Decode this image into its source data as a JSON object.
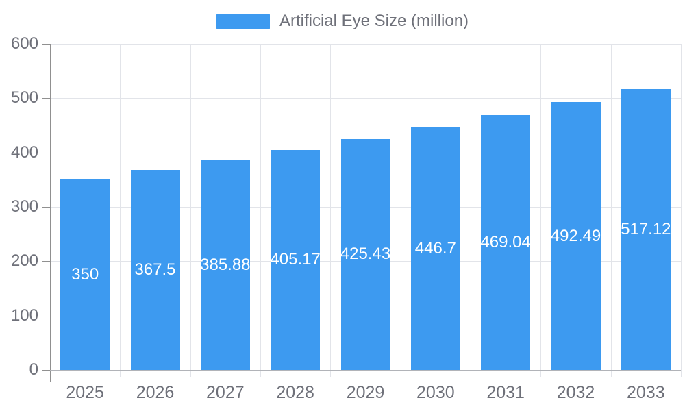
{
  "legend": {
    "label": "Artificial Eye Size (million)"
  },
  "colors": {
    "bar": "#3D9AF0",
    "value_label": "#FFFFFF",
    "axis_label": "#6E7079",
    "legend_label": "#6E7079",
    "grid_line": "#E2E4E9",
    "y_axis_line": "#909090",
    "x_axis_line": "#B1B3B8",
    "background": "#FFFFFF"
  },
  "chart_data": {
    "type": "bar",
    "title": "",
    "xlabel": "",
    "ylabel": "",
    "categories": [
      "2025",
      "2026",
      "2027",
      "2028",
      "2029",
      "2030",
      "2031",
      "2032",
      "2033"
    ],
    "series": [
      {
        "name": "Artificial Eye Size (million)",
        "values": [
          350,
          367.5,
          385.88,
          405.17,
          425.43,
          446.7,
          469.04,
          492.49,
          517.12
        ],
        "value_labels": [
          "350",
          "367.5",
          "385.88",
          "405.17",
          "425.43",
          "446.7",
          "469.04",
          "492.49",
          "517.12"
        ]
      }
    ],
    "ylim": [
      0,
      600
    ],
    "yticks": [
      0,
      100,
      200,
      300,
      400,
      500,
      600
    ],
    "grid": true,
    "legend_position": "top",
    "value_label_position": "inside-middle"
  }
}
